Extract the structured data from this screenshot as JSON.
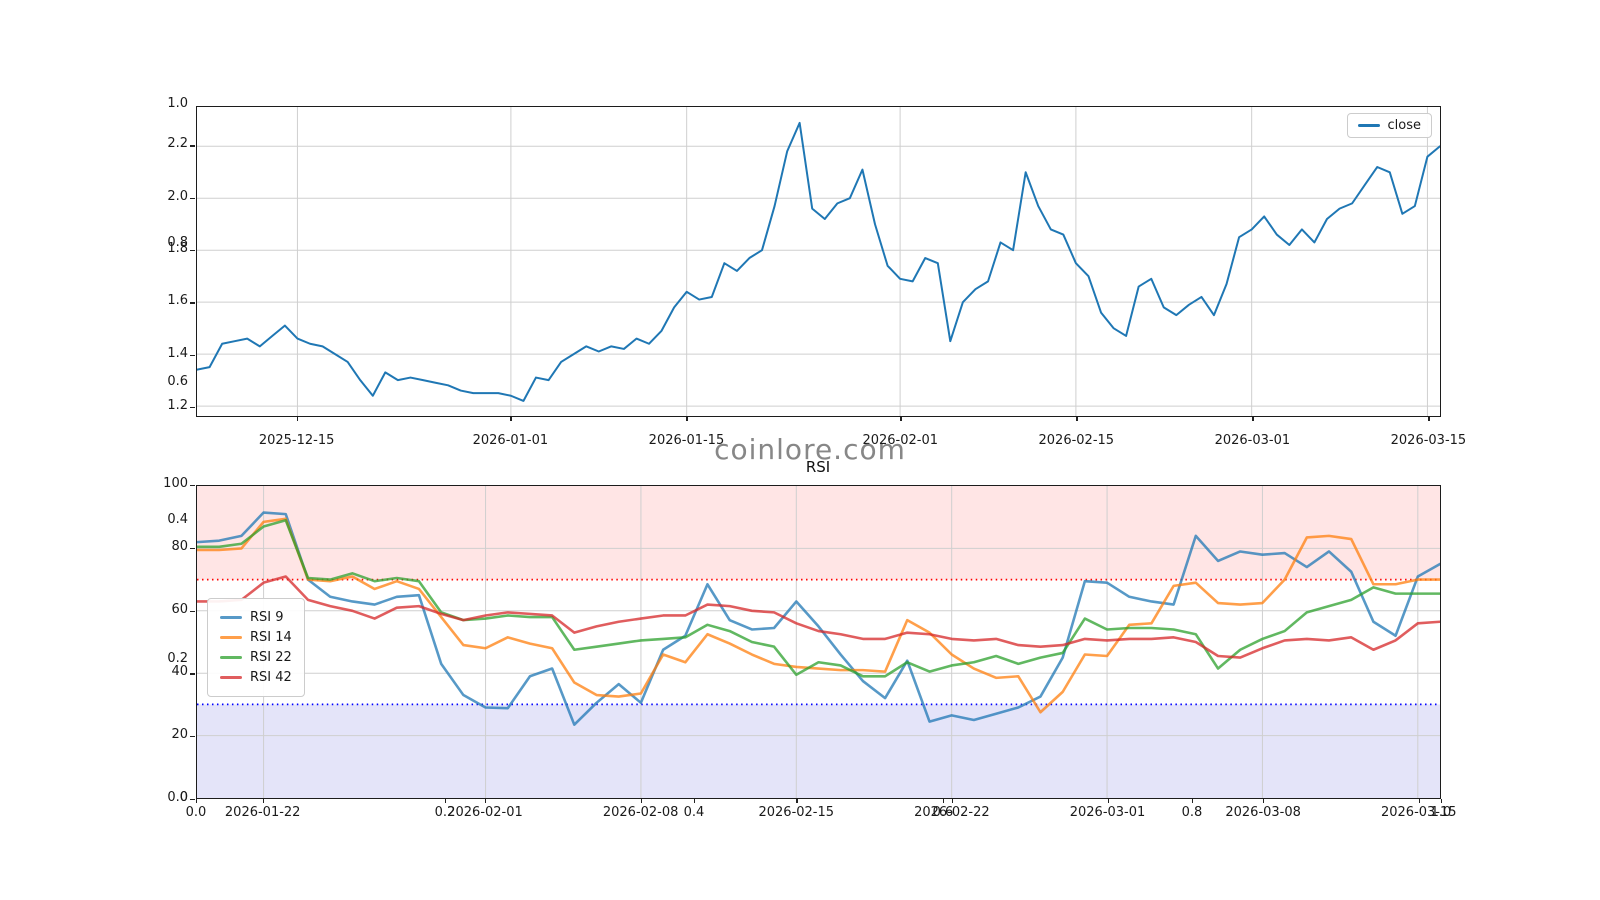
{
  "watermark": "coinlore.com",
  "rsi_title": "RSI",
  "overlay_axis": {
    "x_ticks": [
      "0.0",
      "0.2",
      "0.4",
      "0.6",
      "0.8",
      "1.0"
    ],
    "y_ticks": [
      "0.0",
      "0.2",
      "0.4",
      "0.6",
      "0.8",
      "1.0"
    ]
  },
  "chart_data": [
    {
      "id": "price",
      "type": "line",
      "legend_position": "upper-right",
      "x_start_date": "2025-12-07",
      "x_ticks": [
        {
          "label": "2025-12-15",
          "index": 8
        },
        {
          "label": "2026-01-01",
          "index": 25
        },
        {
          "label": "2026-01-15",
          "index": 39
        },
        {
          "label": "2026-02-01",
          "index": 56
        },
        {
          "label": "2026-02-15",
          "index": 70
        },
        {
          "label": "2026-03-01",
          "index": 84
        },
        {
          "label": "2026-03-15",
          "index": 98
        }
      ],
      "y_ticks": [
        "1.2",
        "1.4",
        "1.6",
        "1.8",
        "2.0",
        "2.2"
      ],
      "ylim": [
        1.162,
        2.351
      ],
      "grid": true,
      "series": [
        {
          "name": "close",
          "color": "#1f77b4",
          "width": 2,
          "opacity": 1,
          "values": [
            1.34,
            1.35,
            1.44,
            1.45,
            1.46,
            1.43,
            1.47,
            1.51,
            1.46,
            1.44,
            1.43,
            1.4,
            1.37,
            1.3,
            1.24,
            1.33,
            1.3,
            1.31,
            1.3,
            1.29,
            1.28,
            1.26,
            1.25,
            1.25,
            1.25,
            1.24,
            1.22,
            1.31,
            1.3,
            1.37,
            1.4,
            1.43,
            1.41,
            1.43,
            1.42,
            1.46,
            1.44,
            1.49,
            1.58,
            1.64,
            1.61,
            1.62,
            1.75,
            1.72,
            1.77,
            1.8,
            1.97,
            2.18,
            2.29,
            1.96,
            1.92,
            1.98,
            2.0,
            2.11,
            1.9,
            1.74,
            1.69,
            1.68,
            1.77,
            1.75,
            1.45,
            1.6,
            1.65,
            1.68,
            1.83,
            1.8,
            2.1,
            1.97,
            1.88,
            1.86,
            1.75,
            1.7,
            1.56,
            1.5,
            1.47,
            1.66,
            1.69,
            1.58,
            1.55,
            1.59,
            1.62,
            1.55,
            1.67,
            1.85,
            1.88,
            1.93,
            1.86,
            1.82,
            1.88,
            1.83,
            1.92,
            1.96,
            1.98,
            2.05,
            2.12,
            2.1,
            1.94,
            1.97,
            2.16,
            2.2
          ]
        }
      ]
    },
    {
      "id": "rsi",
      "type": "line",
      "title": "RSI",
      "legend_position": "middle-left",
      "x_start_date": "2026-01-19",
      "x_ticks": [
        {
          "label": "2026-01-22",
          "index": 3
        },
        {
          "label": "2026-02-01",
          "index": 13
        },
        {
          "label": "2026-02-08",
          "index": 20
        },
        {
          "label": "2026-02-15",
          "index": 27
        },
        {
          "label": "2026-02-22",
          "index": 34
        },
        {
          "label": "2026-03-01",
          "index": 41
        },
        {
          "label": "2026-03-08",
          "index": 48
        },
        {
          "label": "2026-03-15",
          "index": 55
        }
      ],
      "y_ticks": [
        "0",
        "20",
        "40",
        "60",
        "80",
        "100"
      ],
      "ylim": [
        0,
        100
      ],
      "grid": true,
      "hlines": [
        {
          "value": 70,
          "color": "#ff0000",
          "style": "dotted",
          "name": "overbought-line"
        },
        {
          "value": 30,
          "color": "#0000ff",
          "style": "dotted",
          "name": "oversold-line"
        }
      ],
      "bands": [
        {
          "from": 70,
          "to": 100,
          "color": "rgba(255,0,0,0.10)",
          "name": "overbought-band"
        },
        {
          "from": 0,
          "to": 30,
          "color": "rgba(50,50,210,0.13)",
          "name": "oversold-band"
        }
      ],
      "series": [
        {
          "name": "RSI 9",
          "color": "#1f77b4",
          "width": 2.6,
          "opacity": 0.75,
          "values": [
            82,
            82.5,
            84,
            91.5,
            91,
            70,
            64.5,
            63,
            62,
            64.5,
            65,
            43,
            33,
            29,
            28.8,
            39,
            41.5,
            23.5,
            30.5,
            36.5,
            30.5,
            47.5,
            52,
            68.5,
            57,
            54,
            54.5,
            63,
            55,
            46,
            37.5,
            32,
            44,
            24.5,
            26.5,
            25,
            27,
            29,
            32.5,
            45,
            69.5,
            69,
            64.5,
            63,
            62,
            84,
            76,
            79,
            78,
            78.5,
            74,
            79,
            72.5,
            56.5,
            52,
            71,
            75
          ]
        },
        {
          "name": "RSI 14",
          "color": "#ff7f0e",
          "width": 2.6,
          "opacity": 0.75,
          "values": [
            79.5,
            79.5,
            80,
            88.5,
            89.5,
            70,
            69.5,
            71,
            67,
            69.5,
            67,
            58,
            49,
            48,
            51.5,
            49.5,
            48,
            37,
            33,
            32.5,
            33.5,
            46,
            43.5,
            52.5,
            49.5,
            46,
            43,
            42,
            41.5,
            41,
            41,
            40.5,
            57,
            53,
            46,
            41.5,
            38.5,
            39,
            27.5,
            34,
            46,
            45.5,
            55.5,
            56,
            68,
            69,
            62.5,
            62,
            62.5,
            70,
            83.5,
            84,
            83,
            68.5,
            68.5,
            70,
            70
          ]
        },
        {
          "name": "RSI 22",
          "color": "#2ca02c",
          "width": 2.6,
          "opacity": 0.75,
          "values": [
            80.5,
            80.5,
            81.5,
            87,
            89,
            70.5,
            70,
            72,
            69.5,
            70.5,
            69.5,
            59.5,
            57,
            57.5,
            58.5,
            58,
            58,
            47.5,
            48.5,
            49.5,
            50.5,
            51,
            51.5,
            55.5,
            53.5,
            50,
            48.5,
            39.5,
            43.5,
            42.5,
            39,
            39,
            43.5,
            40.5,
            42.5,
            43.5,
            45.5,
            43,
            45,
            46.5,
            57.5,
            54,
            54.5,
            54.5,
            54,
            52.5,
            41.5,
            47.5,
            51,
            53.5,
            59.5,
            61.5,
            63.5,
            67.5,
            65.5,
            65.5,
            65.5
          ]
        },
        {
          "name": "RSI 42",
          "color": "#d62728",
          "width": 2.6,
          "opacity": 0.75,
          "values": [
            63,
            63,
            63.5,
            69,
            71,
            63.5,
            61.5,
            60,
            57.5,
            61,
            61.5,
            59,
            57,
            58.5,
            59.5,
            59,
            58.5,
            53,
            55,
            56.5,
            57.5,
            58.5,
            58.5,
            62,
            61.5,
            60,
            59.5,
            56,
            53.5,
            52.5,
            51,
            51,
            53,
            52.5,
            51,
            50.5,
            51,
            49,
            48.5,
            49,
            51,
            50.5,
            51,
            51,
            51.5,
            50,
            45.5,
            45,
            48,
            50.5,
            51,
            50.5,
            51.5,
            47.5,
            50.5,
            56,
            56.5
          ]
        }
      ]
    }
  ]
}
